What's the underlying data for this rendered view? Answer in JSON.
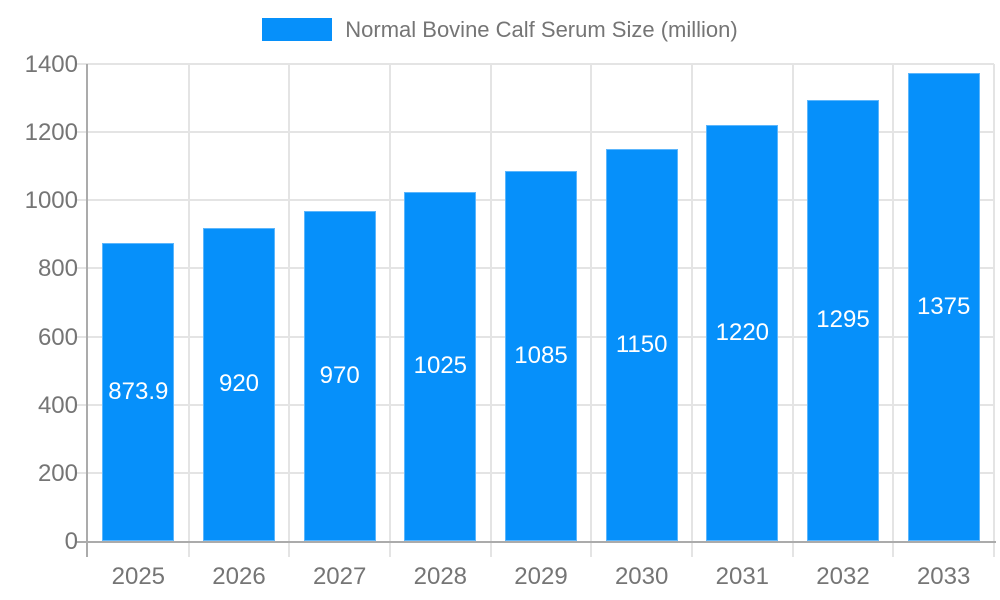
{
  "chart_data": {
    "type": "bar",
    "title": "Normal Bovine Calf Serum Size (million)",
    "series_name": "Normal Bovine Calf Serum Size (million)",
    "categories": [
      "2025",
      "2026",
      "2027",
      "2028",
      "2029",
      "2030",
      "2031",
      "2032",
      "2033"
    ],
    "values": [
      873.9,
      920,
      970,
      1025,
      1085,
      1150,
      1220,
      1295,
      1375
    ],
    "bar_labels": [
      "873.9",
      "920",
      "970",
      "1025",
      "1085",
      "1150",
      "1220",
      "1295",
      "1375"
    ],
    "xlabel": "",
    "ylabel": "",
    "ylim": [
      0,
      1400
    ],
    "y_ticks": [
      0,
      200,
      400,
      600,
      800,
      1000,
      1200,
      1400
    ],
    "grid": true,
    "legend_position": "top-center",
    "colors": {
      "bar": "#0690fa",
      "bar_label_text": "#ffffff",
      "axis": "#ababab",
      "gridline": "#e4e4e4",
      "tick_label_text": "#757575",
      "legend_text": "#757575",
      "background": "#ffffff"
    }
  }
}
